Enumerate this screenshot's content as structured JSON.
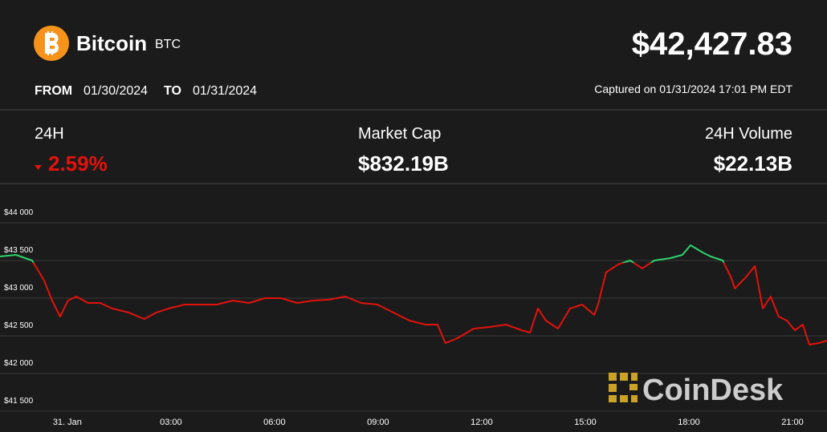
{
  "header": {
    "name": "Bitcoin",
    "symbol": "BTC",
    "price": "$42,427.83",
    "from_label": "FROM",
    "from_date": "01/30/2024",
    "to_label": "TO",
    "to_date": "01/31/2024",
    "captured": "Captured on 01/31/2024 17:01 PM EDT"
  },
  "stats": [
    {
      "label": "24H",
      "value": "2.59%"
    },
    {
      "label": "Market Cap",
      "value": "$832.19B"
    },
    {
      "label": "24H Volume",
      "value": "$22.13B"
    }
  ],
  "watermark": "CoinDesk",
  "chart_data": {
    "type": "line",
    "x": [
      -1.95,
      -1.49,
      -1.02,
      -0.67,
      -0.44,
      -0.21,
      0.02,
      0.26,
      0.6,
      0.95,
      1.3,
      1.77,
      2.23,
      2.58,
      2.93,
      3.4,
      3.86,
      4.33,
      4.79,
      5.26,
      5.72,
      6.19,
      6.65,
      7.12,
      7.58,
      8.05,
      8.51,
      8.98,
      9.44,
      9.91,
      10.37,
      10.72,
      10.95,
      11.3,
      11.77,
      12.23,
      12.7,
      13.16,
      13.4,
      13.63,
      13.86,
      14.21,
      14.56,
      14.91,
      15.26,
      15.37,
      15.6,
      15.95,
      16.3,
      16.65,
      17.0,
      17.47,
      17.81,
      18.05,
      18.4,
      18.63,
      18.98,
      19.21,
      19.33,
      19.67,
      19.91,
      20.14,
      20.37,
      20.6,
      20.84,
      21.07,
      21.3,
      21.49,
      21.77,
      22.0
    ],
    "values": [
      43553,
      43574,
      43500,
      43234,
      42968,
      42755,
      42968,
      43021,
      42936,
      42936,
      42862,
      42809,
      42723,
      42809,
      42862,
      42915,
      42915,
      42915,
      42968,
      42936,
      43000,
      43000,
      42936,
      42968,
      42979,
      43021,
      42936,
      42915,
      42809,
      42702,
      42649,
      42649,
      42404,
      42468,
      42596,
      42617,
      42649,
      42574,
      42542,
      42862,
      42702,
      42596,
      42862,
      42915,
      42777,
      42915,
      43340,
      43447,
      43500,
      43394,
      43500,
      43532,
      43574,
      43702,
      43606,
      43553,
      43500,
      43287,
      43128,
      43287,
      43426,
      42862,
      43021,
      42755,
      42702,
      42574,
      42649,
      42383,
      42404,
      42436
    ],
    "color": "#e3120b",
    "up_color": "#2fd36b",
    "baseline": 43470,
    "xlim": [
      -1.95,
      22.0
    ],
    "xticks": [
      {
        "value": 0,
        "label": "31. Jan"
      },
      {
        "value": 3,
        "label": "03:00"
      },
      {
        "value": 6,
        "label": "06:00"
      },
      {
        "value": 9,
        "label": "09:00"
      },
      {
        "value": 12,
        "label": "12:00"
      },
      {
        "value": 15,
        "label": "15:00"
      },
      {
        "value": 18,
        "label": "18:00"
      },
      {
        "value": 21,
        "label": "21:00"
      }
    ],
    "ylim": [
      41500,
      44510
    ],
    "yticks": [
      {
        "value": 41500,
        "label": "$41 500"
      },
      {
        "value": 42000,
        "label": "$42 000"
      },
      {
        "value": 42500,
        "label": "$42 500"
      },
      {
        "value": 43000,
        "label": "$43 000"
      },
      {
        "value": 43500,
        "label": "$43 500"
      },
      {
        "value": 44000,
        "label": "$44 000"
      }
    ],
    "grid": true
  }
}
